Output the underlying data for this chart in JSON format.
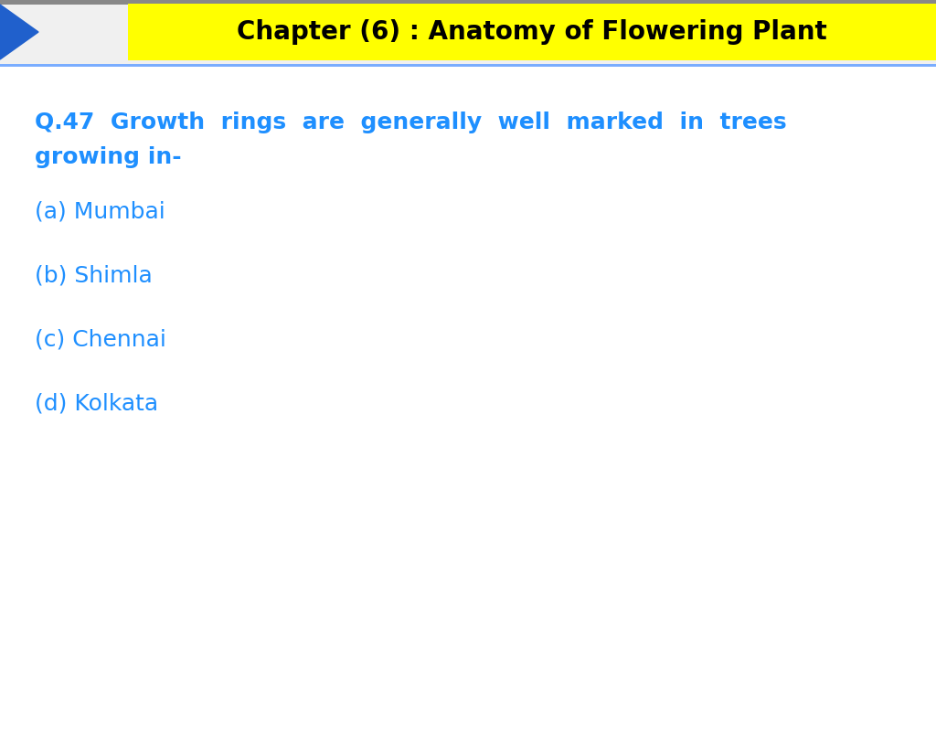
{
  "title": "Chapter (6) : Anatomy of Flowering Plant",
  "title_color": "#000000",
  "title_bg_color": "#FFFF00",
  "title_fontsize": 20,
  "question_line1": "Q.47  Growth  rings  are  generally  well  marked  in  trees",
  "question_line2": "growing in-",
  "question_color": "#1E8FFF",
  "question_fontsize": 18,
  "options": [
    "(a) Mumbai",
    "(b) Shimla",
    "(c) Chennai",
    "(d) Kolkata"
  ],
  "options_color": "#1E8FFF",
  "options_fontsize": 18,
  "bg_color": "#FFFFFF",
  "header_bg_color": "#F0F0F0",
  "left_marker_color": "#2060CC",
  "separator_color": "#AAAAAA",
  "bottom_line_color": "#7AADFF"
}
